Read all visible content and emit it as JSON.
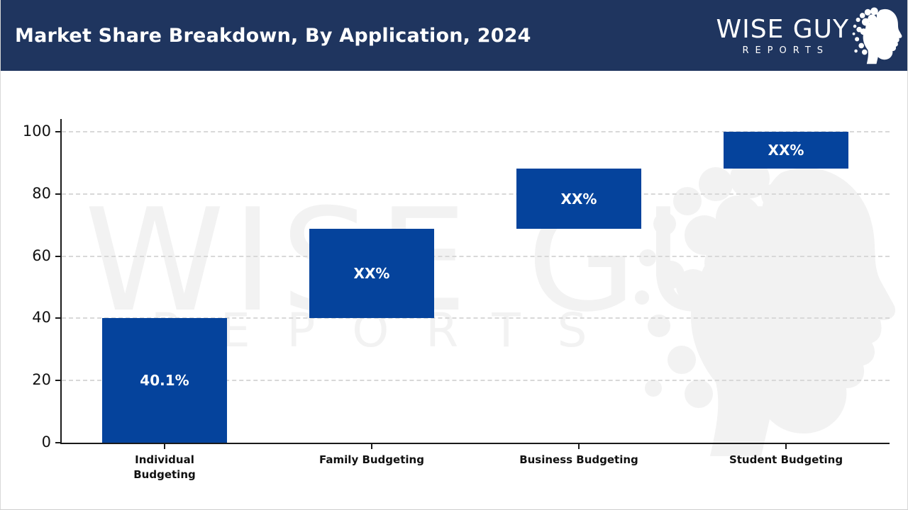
{
  "header": {
    "title": "Market Share Breakdown, By Application, 2024",
    "logo": {
      "line1": "WISE GUY",
      "line2": "REPORTS"
    }
  },
  "watermark": {
    "line1": "WISE GUY",
    "line2": "REPORTS"
  },
  "colors": {
    "header_bg": "#1f355f",
    "bar": "#05439c",
    "bar_label": "#ffffff",
    "grid": "#d8d8d8",
    "axis": "#1a1a1a",
    "watermark": "#f2f2f2"
  },
  "chart_data": {
    "type": "bar",
    "subtype": "waterfall",
    "title": "Market Share Breakdown, By Application, 2024",
    "categories": [
      "Individual\nBudgeting",
      "Family Budgeting",
      "Business Budgeting",
      "Student Budgeting"
    ],
    "bars": [
      {
        "category": "Individual Budgeting",
        "start": 0,
        "end": 40.1,
        "label": "40.1%"
      },
      {
        "category": "Family Budgeting",
        "start": 40.1,
        "end": 68.8,
        "label": "XX%"
      },
      {
        "category": "Business Budgeting",
        "start": 68.8,
        "end": 88.1,
        "label": "XX%"
      },
      {
        "category": "Student Budgeting",
        "start": 88.1,
        "end": 100,
        "label": "XX%"
      }
    ],
    "yticks": [
      0,
      20,
      40,
      60,
      80,
      100
    ],
    "ylim": [
      0,
      105
    ],
    "xlabel": "",
    "ylabel": "",
    "grid": "horizontal-dashed",
    "legend": "none",
    "unit": "%"
  }
}
